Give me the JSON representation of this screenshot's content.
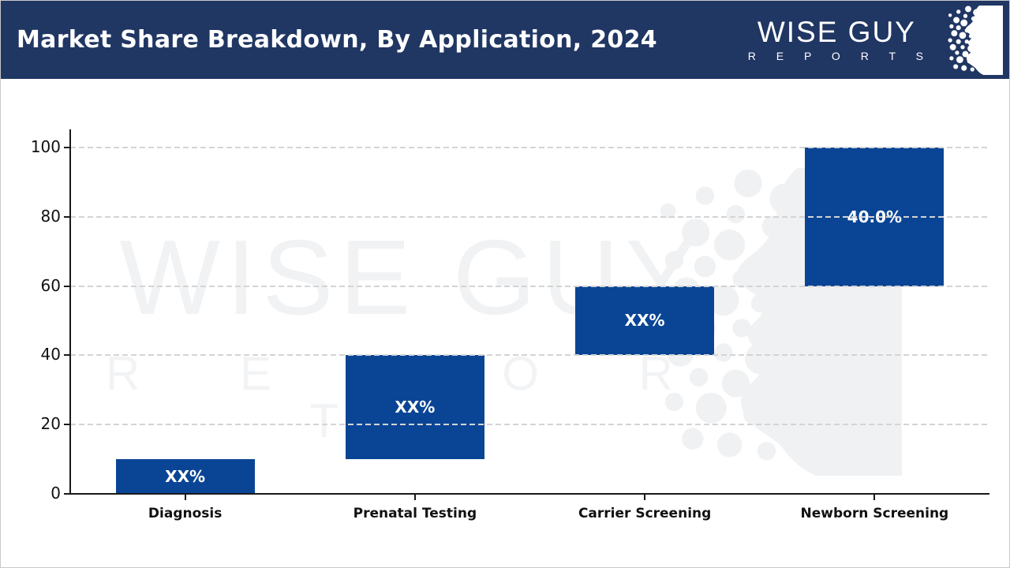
{
  "header": {
    "title": "Market Share Breakdown, By Application, 2024",
    "logo": {
      "line1": "WISE GUY",
      "line2": "R E P O R T S"
    }
  },
  "watermark": {
    "line1": "WISE GUY",
    "line2": "R E P O R T S"
  },
  "colors": {
    "header_bg": "#203663",
    "bar": "#0a4595",
    "axis": "#1a1a1a",
    "grid": "#d4d4d4",
    "watermark": "#f1f2f4"
  },
  "chart_data": {
    "type": "bar",
    "subtype": "waterfall",
    "title": "Market Share Breakdown, By Application, 2024",
    "categories": [
      "Diagnosis",
      "Prenatal Testing",
      "Carrier Screening",
      "Newborn Screening"
    ],
    "series": [
      {
        "name": "Market Share",
        "starts": [
          0,
          10,
          40,
          60
        ],
        "ends": [
          10,
          40,
          60,
          100
        ],
        "labels": [
          "XX%",
          "XX%",
          "XX%",
          "40.0%"
        ]
      }
    ],
    "yticks": [
      0,
      20,
      40,
      60,
      80,
      100
    ],
    "ylim": [
      0,
      105
    ],
    "xlabel": "",
    "ylabel": "",
    "grid": "horizontal-dashed",
    "legend": "none"
  }
}
